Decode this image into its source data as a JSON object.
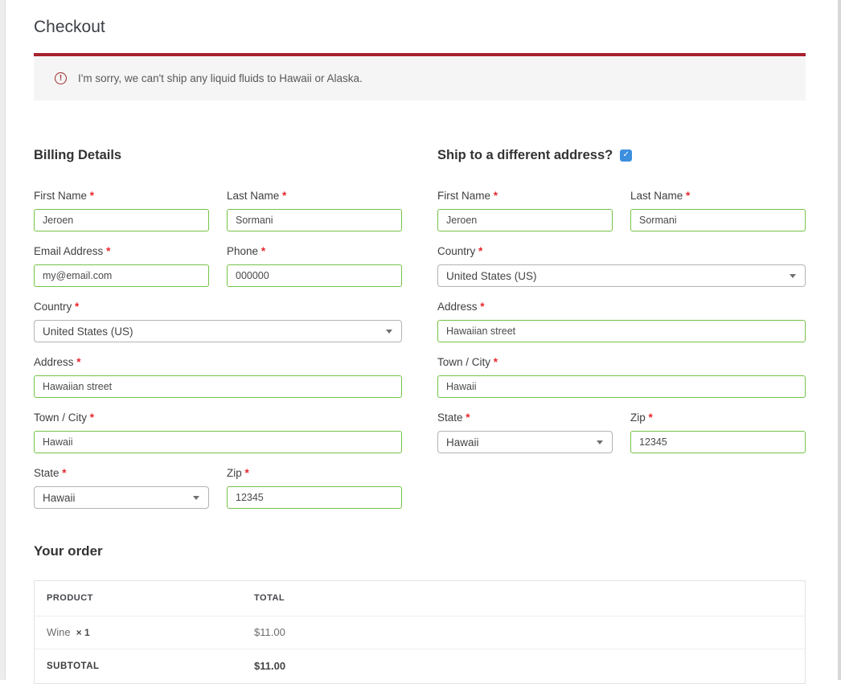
{
  "page": {
    "title": "Checkout"
  },
  "notice": {
    "text": "I'm sorry, we can't ship any liquid fluids to Hawaii or Alaska."
  },
  "icons": {
    "alert_circle": "!",
    "checkmark": "✓"
  },
  "ui": {
    "required_mark": "*"
  },
  "billing": {
    "heading": "Billing Details",
    "first_name": {
      "label": "First Name",
      "value": "Jeroen"
    },
    "last_name": {
      "label": "Last Name",
      "value": "Sormani"
    },
    "email": {
      "label": "Email Address",
      "value": "my@email.com"
    },
    "phone": {
      "label": "Phone",
      "value": "000000"
    },
    "country": {
      "label": "Country",
      "value": "United States (US)"
    },
    "address": {
      "label": "Address",
      "value": "Hawaiian street"
    },
    "city": {
      "label": "Town / City",
      "value": "Hawaii"
    },
    "state": {
      "label": "State",
      "value": "Hawaii"
    },
    "zip": {
      "label": "Zip",
      "value": "12345"
    }
  },
  "shipping": {
    "heading": "Ship to a different address?",
    "checkbox_checked": true,
    "first_name": {
      "label": "First Name",
      "value": "Jeroen"
    },
    "last_name": {
      "label": "Last Name",
      "value": "Sormani"
    },
    "country": {
      "label": "Country",
      "value": "United States (US)"
    },
    "address": {
      "label": "Address",
      "value": "Hawaiian street"
    },
    "city": {
      "label": "Town / City",
      "value": "Hawaii"
    },
    "state": {
      "label": "State",
      "value": "Hawaii"
    },
    "zip": {
      "label": "Zip",
      "value": "12345"
    }
  },
  "order": {
    "heading": "Your order",
    "table": {
      "header": {
        "product": "PRODUCT",
        "total": "TOTAL"
      },
      "rows": [
        {
          "product": "Wine",
          "quantity": "× 1",
          "total": "$11.00"
        }
      ],
      "subtotal": {
        "label": "SUBTOTAL",
        "value": "$11.00"
      }
    }
  },
  "colors": {
    "accent_red": "#a8232e",
    "valid_field_green": "#74c347",
    "checkbox_blue": "#3d8fde",
    "notice_background": "#f5f5f5",
    "required_red": "#e8262d"
  }
}
